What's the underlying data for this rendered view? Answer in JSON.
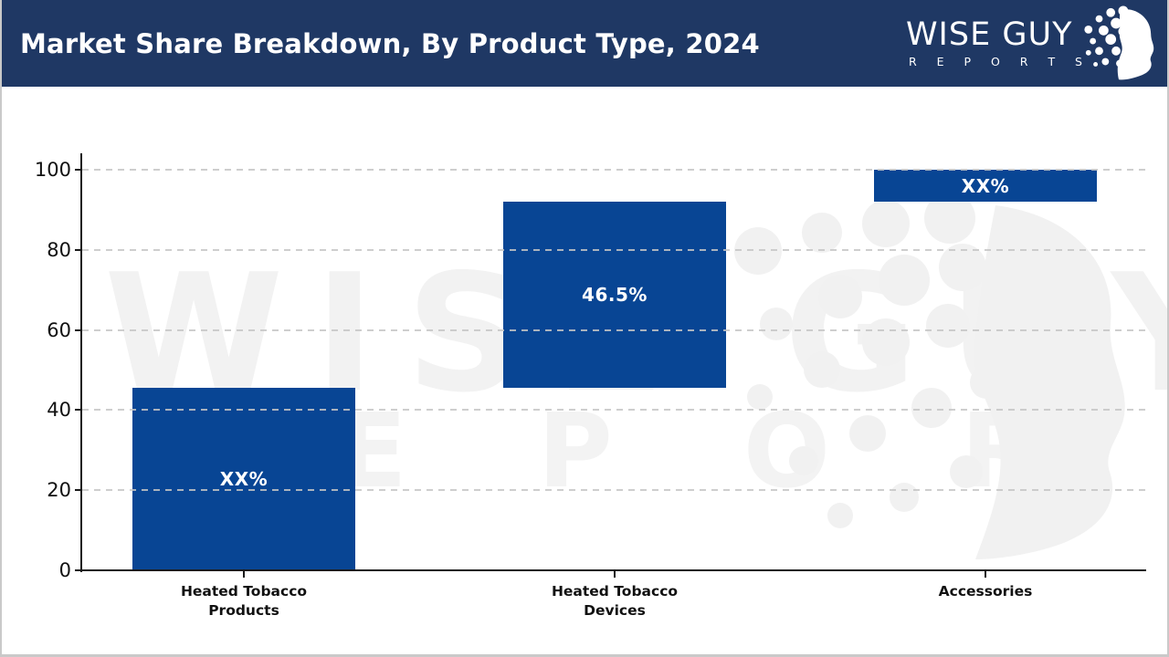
{
  "header": {
    "title": "Market Share Breakdown, By Product Type, 2024",
    "logo": {
      "name_line": "WISE GUY",
      "reports_line": "R E P O R T S"
    }
  },
  "watermark": {
    "line1": "WISE GUY",
    "line2": "R E P O R T S"
  },
  "chart_data": {
    "type": "bar",
    "subtype": "waterfall",
    "title": "Market Share Breakdown, By Product Type, 2024",
    "categories": [
      "Heated Tobacco Products",
      "Heated Tobacco Devices",
      "Accessories"
    ],
    "category_lines": [
      [
        "Heated Tobacco",
        "Products"
      ],
      [
        "Heated Tobacco",
        "Devices"
      ],
      [
        "Accessories"
      ]
    ],
    "bars": [
      {
        "category": "Heated Tobacco Products",
        "start": 0,
        "end": 45.5,
        "label": "XX%"
      },
      {
        "category": "Heated Tobacco Devices",
        "start": 45.5,
        "end": 92,
        "label": "46.5%"
      },
      {
        "category": "Accessories",
        "start": 92,
        "end": 100,
        "label": "XX%"
      }
    ],
    "yticks": [
      0,
      20,
      40,
      60,
      80,
      100
    ],
    "ylim": [
      0,
      104
    ],
    "xlabel": "",
    "ylabel": "",
    "grid": {
      "axis": "y",
      "style": "dashed"
    },
    "legend": null,
    "bar_color": "#084594"
  },
  "colors": {
    "header_bg": "#1f3864",
    "bar": "#084594",
    "grid": "#cccccc",
    "axis": "#1a1a1a",
    "watermark": "#f1f1f1",
    "page_border": "#c9c9c9"
  }
}
